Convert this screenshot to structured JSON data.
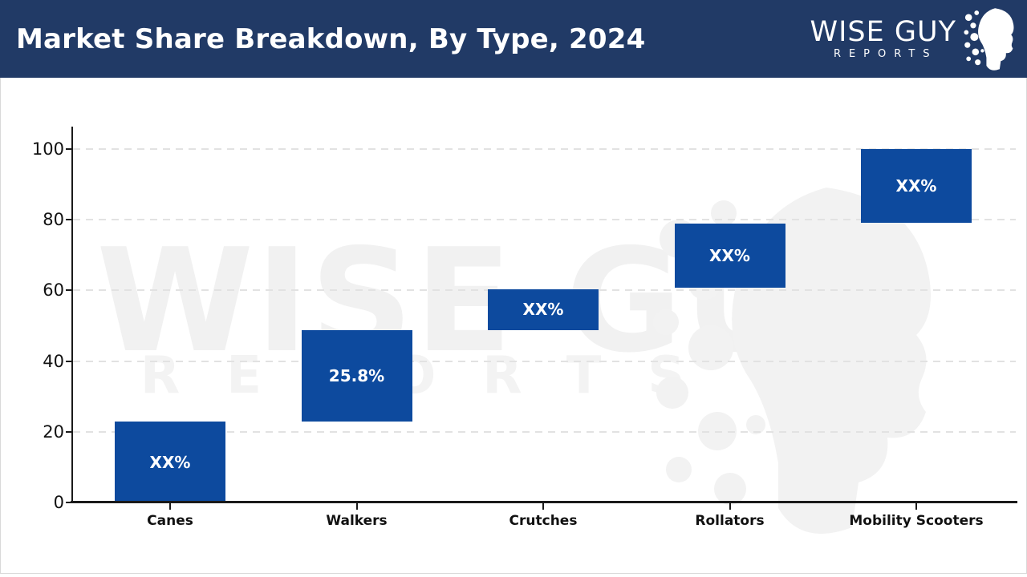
{
  "page": {
    "background": "#ffffff",
    "frame_color": "#d9d9d9"
  },
  "header": {
    "background": "#213a66",
    "title": "Market Share Breakdown, By Type, 2024",
    "logo": {
      "line1": "WISE GUY",
      "line2": "REPORTS"
    }
  },
  "watermark": {
    "line1": "WISE GUY",
    "line2": "REPORTS"
  },
  "chart_data": {
    "type": "bar",
    "subtype": "waterfall",
    "title": "Market Share Breakdown, By Type, 2024",
    "xlabel": "",
    "ylabel": "",
    "ylim": [
      0,
      100
    ],
    "yticks": [
      0,
      20,
      40,
      60,
      80,
      100
    ],
    "grid": "horizontal-dashed",
    "legend": false,
    "bar_color": "#0d4a9e",
    "bar_label_color": "#ffffff",
    "categories": [
      "Canes",
      "Walkers",
      "Crutches",
      "Rollators",
      "Mobility Scooters"
    ],
    "segments": [
      {
        "category": "Canes",
        "start": 0,
        "end": 22.8,
        "label": "XX%"
      },
      {
        "category": "Walkers",
        "start": 22.9,
        "end": 48.7,
        "label": "25.8%",
        "value": 25.8
      },
      {
        "category": "Crutches",
        "start": 48.8,
        "end": 60.4,
        "label": "XX%"
      },
      {
        "category": "Rollators",
        "start": 60.7,
        "end": 78.8,
        "label": "XX%"
      },
      {
        "category": "Mobility Scooters",
        "start": 79.2,
        "end": 100,
        "label": "XX%"
      }
    ]
  }
}
